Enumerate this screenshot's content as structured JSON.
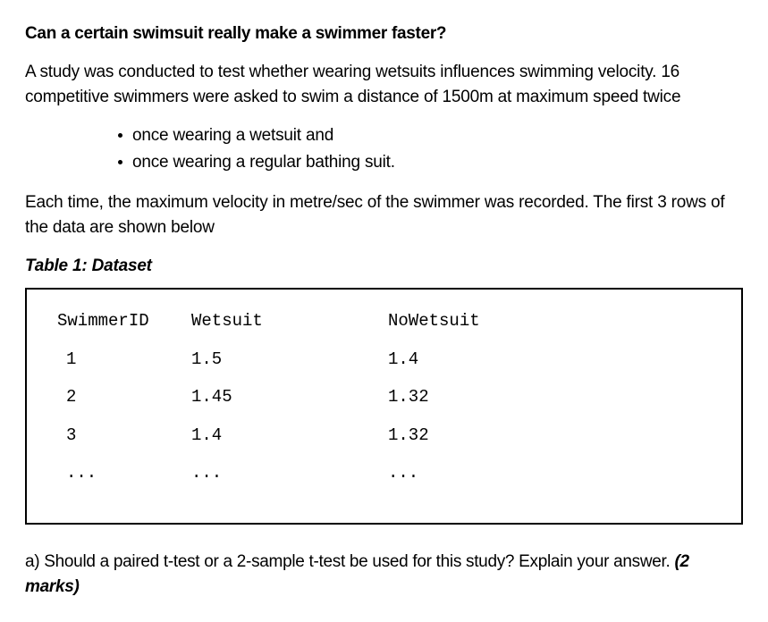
{
  "title": "Can a certain swimsuit really make a swimmer faster?",
  "intro": "A study was conducted to test whether wearing wetsuits influences swimming velocity. 16 competitive swimmers were asked to swim a distance of 1500m at maximum speed twice",
  "conditions": [
    "once wearing a wetsuit and",
    "once wearing a regular bathing suit."
  ],
  "para2": "Each time, the maximum velocity in metre/sec of the swimmer was recorded. The first 3 rows of the data are shown below",
  "table_caption": "Table 1: Dataset",
  "table": {
    "columns": [
      "SwimmerID",
      "Wetsuit",
      "NoWetsuit"
    ],
    "rows": [
      [
        "1",
        "1.5",
        "1.4"
      ],
      [
        "2",
        "1.45",
        "1.32"
      ],
      [
        "3",
        "1.4",
        "1.32"
      ],
      [
        "...",
        "...",
        "..."
      ]
    ]
  },
  "question_a_prefix": "a) Should a paired t-test or a 2-sample t-test be used for this study? Explain your answer. ",
  "question_a_marks": "(2 marks)"
}
